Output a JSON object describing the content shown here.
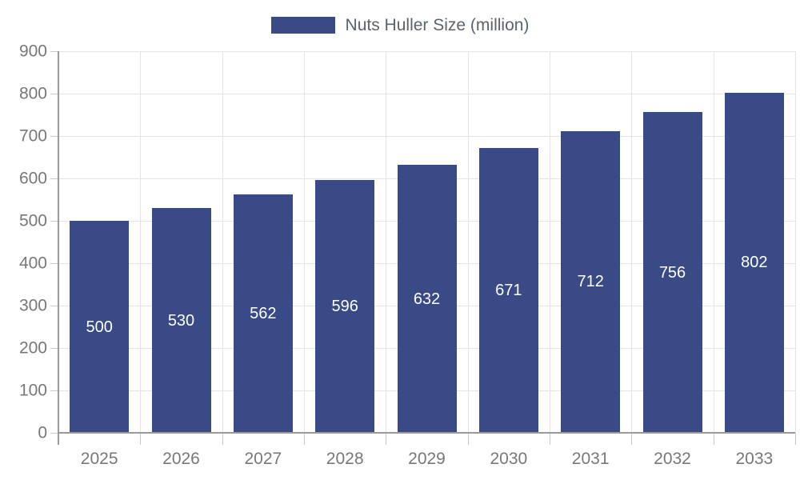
{
  "chart_data": {
    "type": "bar",
    "title": "",
    "legend": "Nuts Huller Size (million)",
    "legend_position": "top",
    "categories": [
      "2025",
      "2026",
      "2027",
      "2028",
      "2029",
      "2030",
      "2031",
      "2032",
      "2033"
    ],
    "values": [
      500,
      530,
      562,
      596,
      632,
      671,
      712,
      756,
      802
    ],
    "xlabel": "",
    "ylabel": "",
    "ylim": [
      0,
      900
    ],
    "ytick_step": 100,
    "grid": true,
    "value_labels": "inside-center"
  },
  "colors": {
    "bar": "#394A87",
    "bar_label": "#FFFFFF",
    "grid": "#E4E4E4",
    "axis": "#9A9A9A",
    "tick": "#C9C9C9",
    "tick_text": "#787878",
    "legend_text": "#5A646E",
    "background": "#FFFFFF"
  }
}
